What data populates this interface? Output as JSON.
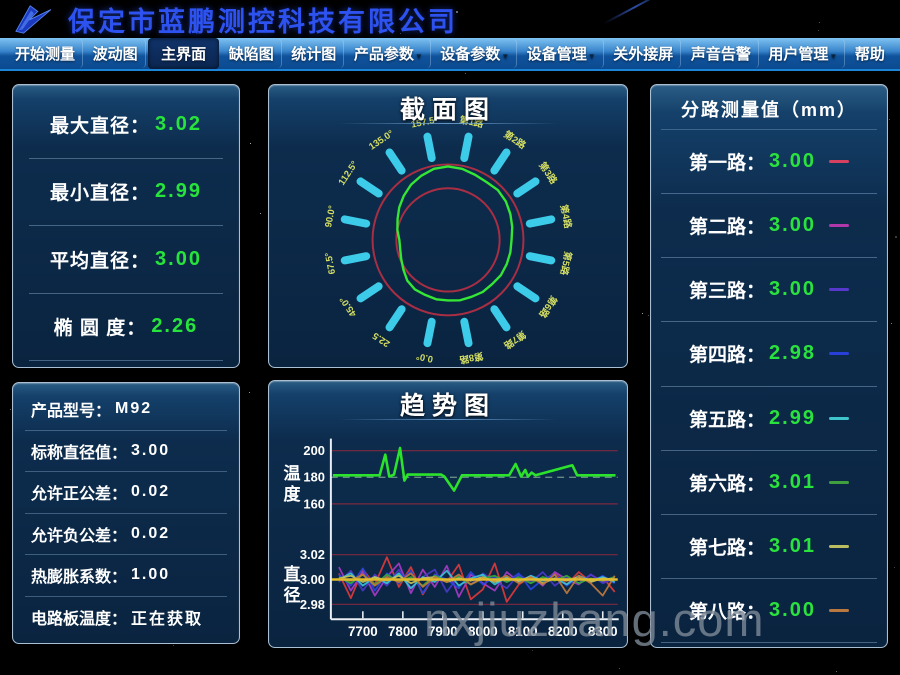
{
  "title_bar": {
    "company": "保定市蓝鹏测控科技有限公司"
  },
  "icons": {
    "dropdown_arrow": "▼"
  },
  "menu": {
    "items": [
      {
        "label": "开始测量",
        "selected": false,
        "dropdown": false
      },
      {
        "label": "波动图",
        "selected": false,
        "dropdown": false
      },
      {
        "label": "主界面",
        "selected": true,
        "dropdown": false
      },
      {
        "label": "缺陷图",
        "selected": false,
        "dropdown": false
      },
      {
        "label": "统计图",
        "selected": false,
        "dropdown": false
      },
      {
        "label": "产品参数",
        "selected": false,
        "dropdown": true
      },
      {
        "label": "设备参数",
        "selected": false,
        "dropdown": true
      },
      {
        "label": "设备管理",
        "selected": false,
        "dropdown": true
      },
      {
        "label": "关外接屏",
        "selected": false,
        "dropdown": false
      },
      {
        "label": "声音告警",
        "selected": false,
        "dropdown": false
      },
      {
        "label": "用户管理",
        "selected": false,
        "dropdown": true
      },
      {
        "label": "帮助",
        "selected": false,
        "dropdown": false
      }
    ]
  },
  "measurements": {
    "rows": [
      {
        "label": "最大直径：",
        "value": "3.02"
      },
      {
        "label": "最小直径：",
        "value": "2.99"
      },
      {
        "label": "平均直径：",
        "value": "3.00"
      },
      {
        "label": "椭 圆 度：",
        "value": "2.26"
      }
    ]
  },
  "product": {
    "rows": [
      {
        "label": "产品型号：",
        "value": "M92"
      },
      {
        "label": "标称直径值：",
        "value": "3.00"
      },
      {
        "label": "允许正公差：",
        "value": "0.02"
      },
      {
        "label": "允许负公差：",
        "value": "0.02"
      },
      {
        "label": "热膨胀系数：",
        "value": "1.00"
      },
      {
        "label": "电路板温度：",
        "value": "正在获取"
      }
    ]
  },
  "section_view": {
    "title": "截面图",
    "angle_labels": [
      "157.5°",
      "135.0°",
      "112.5°",
      "90.0°",
      "67.5°",
      "45.0°",
      "22.5",
      "0.0°"
    ],
    "channel_labels": [
      "第1路",
      "第2路",
      "第3路",
      "第4路",
      "第5路",
      "第6路",
      "第7路",
      "第8路"
    ],
    "profile_radii": [
      64,
      66,
      68,
      70,
      71,
      70,
      71,
      73,
      74,
      73,
      70,
      67,
      63,
      59,
      55,
      52,
      49,
      49,
      51,
      54,
      58,
      60,
      60,
      61,
      61,
      62,
      62,
      63,
      63,
      64,
      64,
      64
    ],
    "tolerance_circles": {
      "outer_r": 76,
      "inner_r": 52
    },
    "colors": {
      "tolerance": "#a82e44",
      "profile": "#35e635",
      "gauge": "#3fd4f2",
      "label": "#d4de62"
    }
  },
  "trend_chart": {
    "title": "趋势图",
    "y_temp_label": "温度",
    "y_diam_label": "直径",
    "temp_ticks": [
      200,
      180,
      160
    ],
    "diam_ticks": [
      "3.02",
      "3.00",
      "2.98"
    ],
    "x_ticks": [
      7700,
      7800,
      7900,
      8000,
      8100,
      8200,
      8300
    ],
    "x_range": [
      7620,
      8335
    ],
    "temp_setpoint": 180,
    "diam_nominal": 3.0,
    "temp_series": [
      [
        7625,
        181.5
      ],
      [
        7742,
        181.5
      ],
      [
        7756,
        197
      ],
      [
        7766,
        180.5
      ],
      [
        7778,
        182
      ],
      [
        7793,
        202
      ],
      [
        7804,
        177.5
      ],
      [
        7812,
        182
      ],
      [
        7896,
        182
      ],
      [
        7904,
        180.5
      ],
      [
        7928,
        170
      ],
      [
        7948,
        181.5
      ],
      [
        8066,
        181.5
      ],
      [
        8082,
        190
      ],
      [
        8096,
        180.5
      ],
      [
        8106,
        185.5
      ],
      [
        8113,
        180.5
      ],
      [
        8122,
        183.5
      ],
      [
        8132,
        181.5
      ],
      [
        8224,
        189
      ],
      [
        8236,
        181.5
      ],
      [
        8332,
        181.5
      ]
    ],
    "diam_x_start": 7640,
    "diam_x_step": 30,
    "diam_series": [
      {
        "name": "第一路",
        "color": "#e03838",
        "values": [
          3.005,
          2.985,
          3.008,
          2.996,
          3.018,
          2.994,
          3.01,
          2.988,
          3.004,
          2.998,
          3.012,
          2.984,
          2.992,
          3.013,
          2.982,
          2.996,
          3.002,
          2.999,
          3.005,
          2.996,
          3.006,
          2.998,
          3.002,
          2.99
        ]
      },
      {
        "name": "第二路",
        "color": "#a838c8",
        "values": [
          3.01,
          2.991,
          3.006,
          2.987,
          3.002,
          3.013,
          2.989,
          3.008,
          2.994,
          3.011,
          2.986,
          3.004,
          2.997,
          2.991,
          3.006,
          2.998,
          3.003,
          2.995,
          3.006,
          3.0,
          2.996,
          3.004,
          2.998,
          3.002
        ]
      },
      {
        "name": "第三路",
        "color": "#4838c8",
        "values": [
          2.998,
          3.007,
          2.991,
          3.004,
          2.995,
          3.008,
          2.993,
          3.002,
          3.008,
          2.99,
          3.003,
          2.996,
          3.005,
          2.999,
          2.993,
          3.004,
          2.998,
          3.006,
          2.995,
          3.002,
          2.997,
          3.004,
          2.997,
          3.001
        ]
      },
      {
        "name": "第四路",
        "color": "#2844e0",
        "values": [
          3.004,
          2.995,
          3.009,
          2.991,
          3.005,
          2.997,
          3.007,
          2.989,
          3.004,
          3.0,
          2.993,
          3.006,
          2.996,
          3.002,
          2.998,
          3.005,
          2.992,
          3.0,
          3.004,
          2.995,
          3.002,
          2.998,
          3.003,
          2.997
        ]
      },
      {
        "name": "第五路",
        "color": "#38c4d4",
        "values": [
          3.0,
          3.005,
          2.995,
          3.002,
          2.997,
          3.005,
          2.993,
          3.002,
          2.998,
          3.007,
          2.995,
          3.001,
          3.004,
          2.996,
          3.002,
          2.998,
          3.003,
          2.999,
          3.001,
          2.996,
          3.003,
          2.999,
          3.002,
          2.998
        ]
      },
      {
        "name": "第六路",
        "color": "#38a838",
        "values": [
          3.002,
          2.997,
          3.004,
          2.996,
          3.004,
          2.998,
          3.002,
          2.995,
          3.003,
          2.999,
          3.002,
          2.996,
          3.001,
          3.003,
          2.998,
          3.002,
          2.997,
          3.002,
          2.999,
          3.003,
          2.997,
          3.001,
          2.999,
          3.002
        ]
      },
      {
        "name": "第七路",
        "color": "#c2c25a",
        "values": [
          3.001,
          3.003,
          2.998,
          3.002,
          2.999,
          3.003,
          2.997,
          3.001,
          3.002,
          2.998,
          3.001,
          2.999,
          3.002,
          2.998,
          3.001,
          2.999,
          3.002,
          2.997,
          3.001,
          2.999,
          3.002,
          2.998,
          3.001,
          3.0
        ]
      },
      {
        "name": "第八路",
        "color": "#c07838",
        "values": [
          3.001,
          2.999,
          3.004,
          2.995,
          3.002,
          2.998,
          3.005,
          2.994,
          3.002,
          2.998,
          3.004,
          2.996,
          3.001,
          2.999,
          3.003,
          2.997,
          3.002,
          2.996,
          3.004,
          2.989,
          3.003,
          2.997,
          2.987,
          3.003
        ]
      }
    ],
    "colors": {
      "temp_line": "#2ce32c",
      "nominal_line": "#e2bc2a",
      "grid": "#7c2840",
      "setpoint_dash": "#7aa58e",
      "axis": "#e9eef4"
    }
  },
  "channels_panel": {
    "title": "分路测量值（mm）",
    "channels": [
      {
        "label": "第一路：",
        "value": "3.00",
        "color": "#d84060"
      },
      {
        "label": "第二路：",
        "value": "3.00",
        "color": "#b038a8"
      },
      {
        "label": "第三路：",
        "value": "3.00",
        "color": "#5838cc"
      },
      {
        "label": "第四路：",
        "value": "2.98",
        "color": "#2840d8"
      },
      {
        "label": "第五路：",
        "value": "2.99",
        "color": "#40c4cc"
      },
      {
        "label": "第六路：",
        "value": "3.01",
        "color": "#40a040"
      },
      {
        "label": "第七路：",
        "value": "3.01",
        "color": "#bcbc60"
      },
      {
        "label": "第八路：",
        "value": "3.00",
        "color": "#b87840"
      }
    ]
  },
  "watermark": {
    "text": "nxjiuzhang.com"
  }
}
